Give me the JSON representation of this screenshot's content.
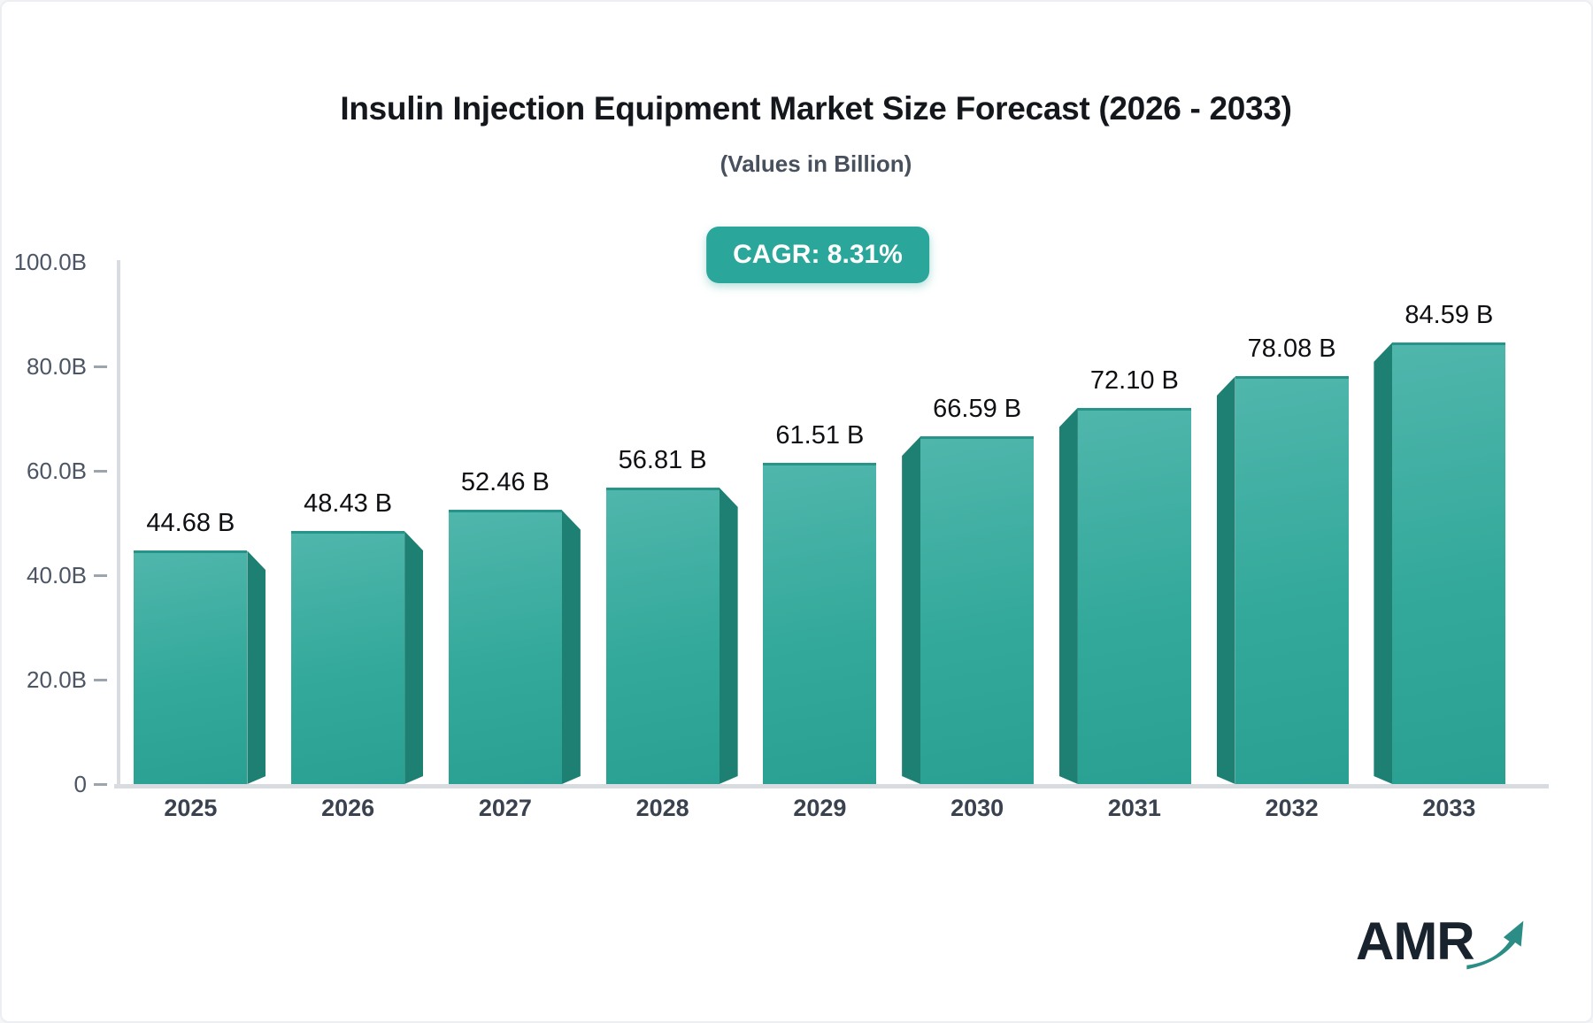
{
  "header": {
    "title": "Insulin Injection Equipment Market Size Forecast (2026 - 2033)",
    "subtitle": "(Values in Billion)",
    "cagr_badge": "CAGR: 8.31%"
  },
  "chart_data": {
    "type": "bar",
    "title": "Insulin Injection Equipment Market Size Forecast (2026 - 2033)",
    "subtitle": "(Values in Billion)",
    "cagr": "8.31%",
    "categories": [
      "2025",
      "2026",
      "2027",
      "2028",
      "2029",
      "2030",
      "2031",
      "2032",
      "2033"
    ],
    "values": [
      44.68,
      48.43,
      52.46,
      56.81,
      61.51,
      66.59,
      72.1,
      78.08,
      84.59
    ],
    "value_labels": [
      "44.68 B",
      "48.43 B",
      "52.46 B",
      "56.81 B",
      "61.51 B",
      "66.59 B",
      "72.10 B",
      "78.08 B",
      "84.59 B"
    ],
    "unit": "Billion",
    "ylim": [
      0,
      100
    ],
    "ytick_values": [
      100,
      80,
      60,
      40,
      20,
      0
    ],
    "ytick_labels": [
      "100.0B",
      "80.0B",
      "60.0B",
      "40.0B",
      "20.0B",
      "0"
    ],
    "grid": false,
    "legend": "none",
    "colors": {
      "bar_top": "#50b6ac",
      "bar_bottom": "#2aa093",
      "bar_side": "#1e7f73",
      "badge": "#2ba69b",
      "axis_line": "#d8dbe0"
    }
  },
  "footer": {
    "logo_text": "AMR"
  }
}
